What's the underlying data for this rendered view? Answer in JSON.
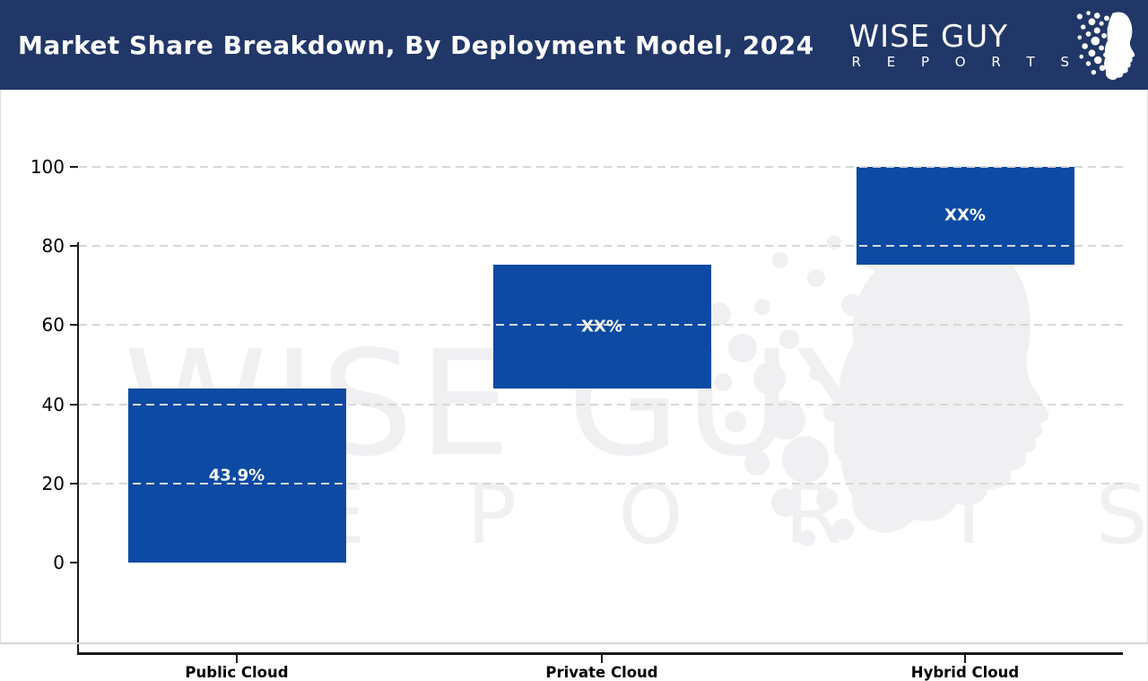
{
  "header": {
    "title": "Market Share Breakdown, By Deployment Model, 2024",
    "logo": {
      "primary": "WISE GUY",
      "secondary": "R E P O R T S"
    }
  },
  "watermark": {
    "line1": "WISE GUY",
    "line2": "R E P O R T S"
  },
  "chart_data": {
    "type": "bar",
    "subtype": "waterfall-floating-segments",
    "title": "Market Share Breakdown, By Deployment Model, 2024",
    "categories": [
      "Public Cloud",
      "Private Cloud",
      "Hybrid Cloud"
    ],
    "segments": [
      {
        "category": "Public Cloud",
        "start": 0,
        "end": 43.9,
        "label": "43.9%"
      },
      {
        "category": "Private Cloud",
        "start": 43.9,
        "end": 75.3,
        "label": "XX%"
      },
      {
        "category": "Hybrid Cloud",
        "start": 75.3,
        "end": 100,
        "label": "XX%"
      }
    ],
    "yticks": [
      0,
      20,
      40,
      60,
      80,
      100
    ],
    "ylim": [
      0,
      103.5
    ],
    "xlabel": "",
    "ylabel": "",
    "grid": "horizontal-dashed",
    "legend_position": "none",
    "bar_color": "#0c4aa3",
    "bar_label_color": "#ffffff",
    "axis_color": "#1a1a1a",
    "grid_color": "#d7d7d7"
  },
  "colors": {
    "header_bg": "#213768",
    "watermark": "#f0f0f3",
    "page_edge": "#d9d9d9"
  }
}
